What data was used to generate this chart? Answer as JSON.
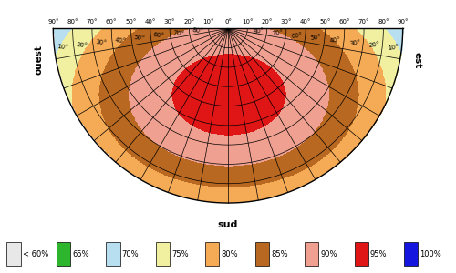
{
  "title_bottom": "sud",
  "label_left": "ouest",
  "label_right": "est",
  "bg_color": "#ffffff",
  "grid_color": "#000000",
  "grid_lw": 0.5,
  "zones": [
    {
      "label": "< 60%",
      "color": "#e8e8e8",
      "r_outer": 1.0,
      "r_inner": 0.965
    },
    {
      "label": "65%",
      "color": "#2db52d",
      "r_outer": 0.965,
      "r_inner": 0.875
    },
    {
      "label": "70%",
      "color": "#b8dff0",
      "r_outer": 0.875,
      "r_inner": 0.79
    },
    {
      "label": "75%",
      "color": "#f0f0a0",
      "r_outer": 0.79,
      "r_inner": 0.7
    },
    {
      "label": "80%",
      "color": "#f5aa55",
      "r_outer": 0.7,
      "r_inner": 0.6
    },
    {
      "label": "85%",
      "color": "#b86820",
      "r_outer": 0.6,
      "r_inner": 0.49
    },
    {
      "label": "90%",
      "color": "#f0a090",
      "r_outer": 0.49,
      "r_inner": 0.375
    },
    {
      "label": "95%",
      "color": "#e01515",
      "r_outer": 0.375,
      "r_inner": 0.2
    },
    {
      "label": "100%",
      "color": "#1515e0",
      "r_outer": 0.2,
      "r_inner": 0.0
    }
  ],
  "n_rings": 9,
  "az_grid_lines": [
    -80,
    -70,
    -60,
    -50,
    -40,
    -30,
    -20,
    -10,
    0,
    10,
    20,
    30,
    40,
    50,
    60,
    70,
    80
  ],
  "az_top_labels": [
    90,
    80,
    70,
    60,
    50,
    40,
    30,
    20,
    10,
    0,
    10,
    20,
    30,
    40,
    50,
    60,
    70,
    80,
    90
  ],
  "elev_side_labels": [
    80,
    70,
    60,
    50,
    40,
    30,
    20,
    10
  ],
  "legend_colors": [
    "#e8e8e8",
    "#2db52d",
    "#b8dff0",
    "#f0f0a0",
    "#f5aa55",
    "#b86820",
    "#f0a090",
    "#e01515",
    "#1515e0"
  ],
  "legend_labels": [
    "< 60%",
    "65%",
    "70%",
    "75%",
    "80%",
    "85%",
    "90%",
    "95%",
    "100%"
  ],
  "tick_fontsize": 5,
  "label_fontsize": 7.5,
  "sud_fontsize": 8
}
